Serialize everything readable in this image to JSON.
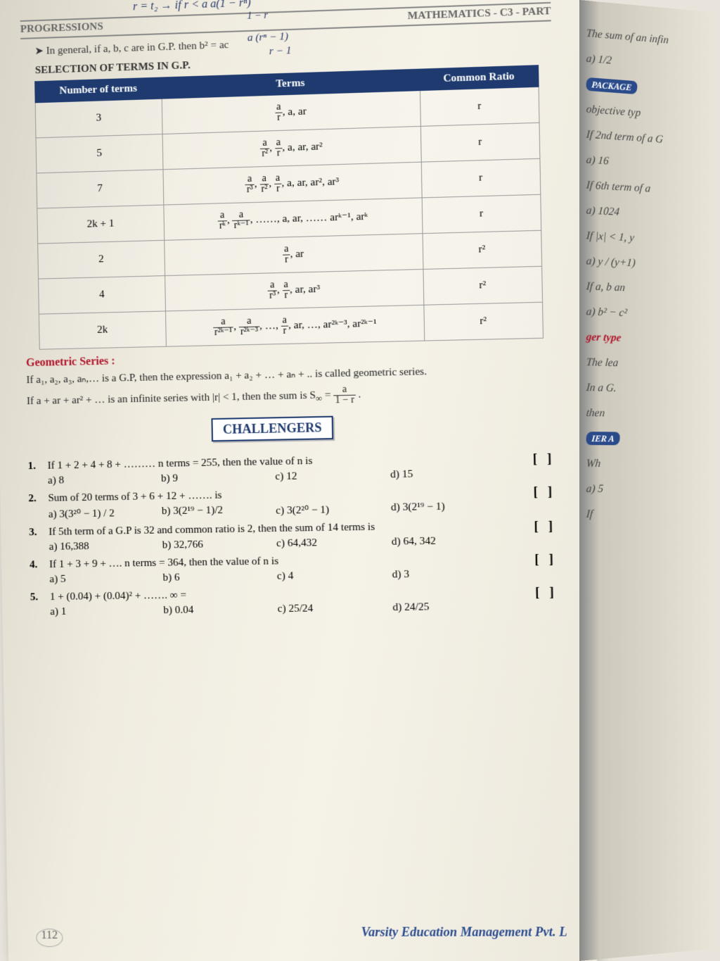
{
  "header": {
    "left": "PROGRESSIONS",
    "right": "MATHEMATICS - C3 - PART"
  },
  "handwritten": {
    "line1": "r = t₂ → if r < a  a(1 − rⁿ)",
    "line2": "        1 − r",
    "line3": "a (rⁿ − 1)",
    "line4": "r − 1"
  },
  "intro": "In general, if a, b, c are in G.P. then b² = ac",
  "subheading": "SELECTION OF TERMS IN G.P.",
  "table": {
    "headers": [
      "Number of terms",
      "Terms",
      "Common Ratio"
    ],
    "rows": [
      {
        "n": "3",
        "terms_html": "<span class='frac'><span class='n'>a</span><span class='d'>r</span></span>, a, ar",
        "ratio": "r"
      },
      {
        "n": "5",
        "terms_html": "<span class='frac'><span class='n'>a</span><span class='d'>r²</span></span>, <span class='frac'><span class='n'>a</span><span class='d'>r</span></span>, a, ar, ar²",
        "ratio": "r"
      },
      {
        "n": "7",
        "terms_html": "<span class='frac'><span class='n'>a</span><span class='d'>r³</span></span>, <span class='frac'><span class='n'>a</span><span class='d'>r²</span></span>, <span class='frac'><span class='n'>a</span><span class='d'>r</span></span>, a, ar, ar², ar³",
        "ratio": "r"
      },
      {
        "n": "2k + 1",
        "terms_html": "<span class='frac'><span class='n'>a</span><span class='d'>rᵏ</span></span>, <span class='frac'><span class='n'>a</span><span class='d'>rᵏ⁻¹</span></span>, ……, a, ar, …… arᵏ⁻¹, arᵏ",
        "ratio": "r"
      },
      {
        "n": "2",
        "terms_html": "<span class='frac'><span class='n'>a</span><span class='d'>r</span></span>, ar",
        "ratio": "r²"
      },
      {
        "n": "4",
        "terms_html": "<span class='frac'><span class='n'>a</span><span class='d'>r³</span></span>, <span class='frac'><span class='n'>a</span><span class='d'>r</span></span>, ar, ar³",
        "ratio": "r²"
      },
      {
        "n": "2k",
        "terms_html": "<span class='frac'><span class='n'>a</span><span class='d'>r²ᵏ⁻¹</span></span>, <span class='frac'><span class='n'>a</span><span class='d'>r²ᵏ⁻³</span></span>, …, <span class='frac'><span class='n'>a</span><span class='d'>r</span></span>, ar, …, ar²ᵏ⁻³, ar²ᵏ⁻¹",
        "ratio": "r²"
      }
    ]
  },
  "geom_series_title": "Geometric Series :",
  "geom_line1": "If a₁, a₂, a₃, aₙ,… is a G.P, then the expression a₁ + a₂ + … + aₙ + .. is called geometric series.",
  "geom_line2_prefix": "If a + ar + ar² + … is an infinite series with |r| < 1, then the sum is ",
  "geom_formula": "S∞ = a / (1 − r)",
  "challengers": "CHALLENGERS",
  "questions": [
    {
      "num": "1.",
      "text": "If 1 + 2 + 4 + 8 + ……… n terms = 255, then the value of n is",
      "opts": [
        "a) 8",
        "b) 9",
        "c) 12",
        "d) 15"
      ]
    },
    {
      "num": "2.",
      "text": "Sum of 20 terms of 3 + 6 + 12 + ……. is",
      "opts": [
        "a) 3(3²⁰ − 1) / 2",
        "b) 3(2¹⁹ − 1)/2",
        "c) 3(2²⁰ − 1)",
        "d) 3(2¹⁹ − 1)"
      ]
    },
    {
      "num": "3.",
      "text": "If 5th term of a G.P is 32 and common ratio is 2, then the sum of 14 terms is",
      "opts": [
        "a) 16,388",
        "b) 32,766",
        "c) 64,432",
        "d) 64, 342"
      ]
    },
    {
      "num": "4.",
      "text": "If 1 + 3 + 9 + …. n terms = 364, then the value of n is",
      "opts": [
        "a) 5",
        "b) 6",
        "c) 4",
        "d) 3"
      ]
    },
    {
      "num": "5.",
      "text": "1 + (0.04) + (0.04)² + ……. ∞ =",
      "opts": [
        "a) 1",
        "b) 0.04",
        "c) 25/24",
        "d) 24/25"
      ]
    }
  ],
  "footer": "Varsity Education Management Pvt. L",
  "pagenum": "112",
  "right_page": {
    "top1": "The sum of an infin",
    "opt_a": "a) 1/2",
    "badge": "PACKAGE",
    "line1": "objective typ",
    "line2": "If 2nd term of a G",
    "opt16": "a) 16",
    "line3": "If 6th term of a",
    "opt1024": "a) 1024",
    "line4": "If |x| < 1, y",
    "frac_y": "a) y / (y+1)",
    "line5": "If a, b an",
    "opt_b2": "a) b² − c²",
    "gertype": "ger type",
    "thelea": "The lea",
    "inag": "In a G.",
    "then": "then",
    "ier": "IER A",
    "wh": "Wh",
    "a5": "a) 5",
    "if": "If"
  }
}
